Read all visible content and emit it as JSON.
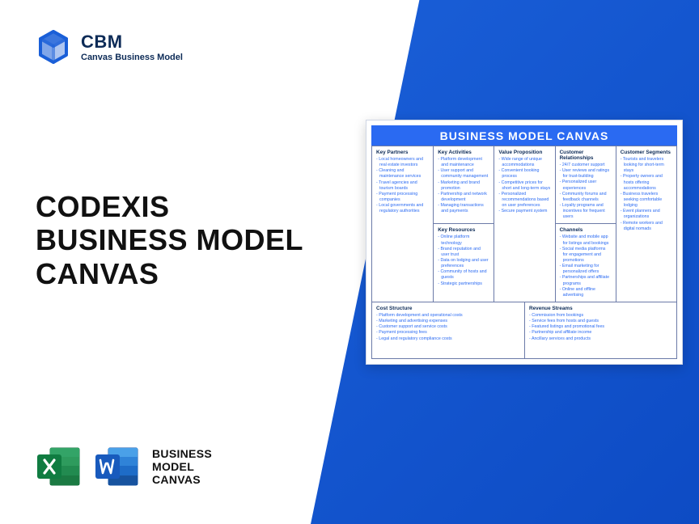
{
  "colors": {
    "primary_blue": "#2a6af2",
    "wedge_start": "#1a5fd8",
    "wedge_end": "#0d4bc4",
    "dark_navy": "#0d2b57",
    "border": "#6b7aa8",
    "text_dark": "#111111",
    "background": "#ffffff"
  },
  "logo": {
    "brand": "CBM",
    "tagline": "Canvas Business Model"
  },
  "heading": {
    "line1": "CODEXIS",
    "line2": "BUSINESS MODEL",
    "line3": "CANVAS"
  },
  "footer": {
    "line1": "BUSINESS",
    "line2": "MODEL",
    "line3": "CANVAS"
  },
  "canvas": {
    "title": "BUSINESS MODEL CANVAS",
    "key_partners": {
      "label": "Key Partners",
      "items": [
        "Local homeowners and real estate investors",
        "Cleaning and maintenance services",
        "Travel agencies and tourism boards",
        "Payment processing companies",
        "Local governments and regulatory authorities"
      ]
    },
    "key_activities": {
      "label": "Key Activities",
      "items": [
        "Platform development and maintenance",
        "User support and community management",
        "Marketing and brand promotion",
        "Partnership and network development",
        "Managing transactions and payments"
      ]
    },
    "key_resources": {
      "label": "Key Resources",
      "items": [
        "Online platform technology",
        "Brand reputation and user trust",
        "Data on lodging and user preferences",
        "Community of hosts and guests",
        "Strategic partnerships"
      ]
    },
    "value_proposition": {
      "label": "Value Proposition",
      "items": [
        "Wide range of unique accommodations",
        "Convenient booking process",
        "Competitive prices for short and long-term stays",
        "Personalized recommendations based on user preferences",
        "Secure payment system"
      ]
    },
    "customer_relationships": {
      "label": "Customer Relationships",
      "items": [
        "24/7 customer support",
        "User reviews and ratings for trust-building",
        "Personalized user experiences",
        "Community forums and feedback channels",
        "Loyalty programs and incentives for frequent users"
      ]
    },
    "channels": {
      "label": "Channels",
      "items": [
        "Website and mobile app for listings and bookings",
        "Social media platforms for engagement and promotions",
        "Email marketing for personalized offers",
        "Partnerships and affiliate programs",
        "Online and offline advertising"
      ]
    },
    "customer_segments": {
      "label": "Customer Segments",
      "items": [
        "Tourists and travelers looking for short-term stays",
        "Property owners and hosts offering accommodations",
        "Business travelers seeking comfortable lodging",
        "Event planners and organizations",
        "Remote workers and digital nomads"
      ]
    },
    "cost_structure": {
      "label": "Cost Structure",
      "items": [
        "Platform development and operational costs",
        "Marketing and advertising expenses",
        "Customer support and service costs",
        "Payment processing fees",
        "Legal and regulatory compliance costs"
      ]
    },
    "revenue_streams": {
      "label": "Revenue Streams",
      "items": [
        "Commission from bookings",
        "Service fees from hosts and guests",
        "Featured listings and promotional fees",
        "Partnership and affiliate income",
        "Ancillary services and products"
      ]
    }
  }
}
